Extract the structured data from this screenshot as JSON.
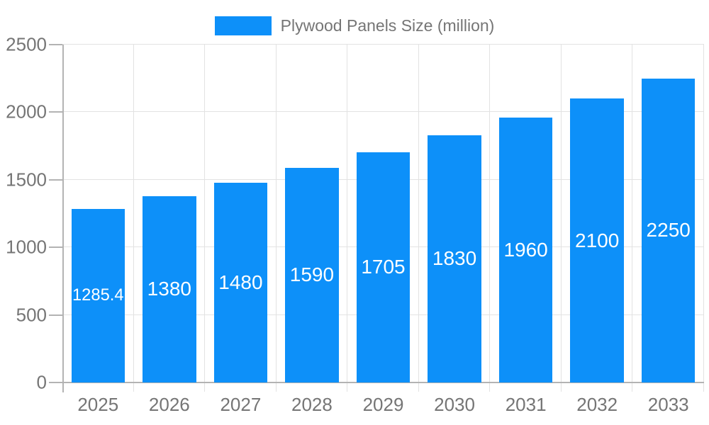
{
  "chart_data": {
    "type": "bar",
    "title": "",
    "xlabel": "",
    "ylabel": "",
    "categories": [
      "2025",
      "2026",
      "2027",
      "2028",
      "2029",
      "2030",
      "2031",
      "2032",
      "2033"
    ],
    "series": [
      {
        "name": "Plywood Panels Size (million)",
        "values": [
          1285.4,
          1380,
          1480,
          1590,
          1705,
          1830,
          1960,
          2100,
          2250
        ],
        "data_labels": [
          "1285.4",
          "1380",
          "1480",
          "1590",
          "1705",
          "1830",
          "1960",
          "2100",
          "2250"
        ],
        "color": "#0d90f9"
      }
    ],
    "ylim": [
      0,
      2500
    ],
    "yticks": [
      0,
      500,
      1000,
      1500,
      2000,
      2500
    ],
    "grid": true,
    "legend": {
      "position": "top",
      "entries": [
        "Plywood Panels Size (million)"
      ]
    }
  },
  "colors": {
    "bar": "#0d90f9",
    "grid": "#e2e2e2",
    "axis": "#b3b3b3",
    "tick_label": "#757575",
    "legend_text": "#757575",
    "value_label": "#ffffff",
    "background": "#ffffff"
  }
}
